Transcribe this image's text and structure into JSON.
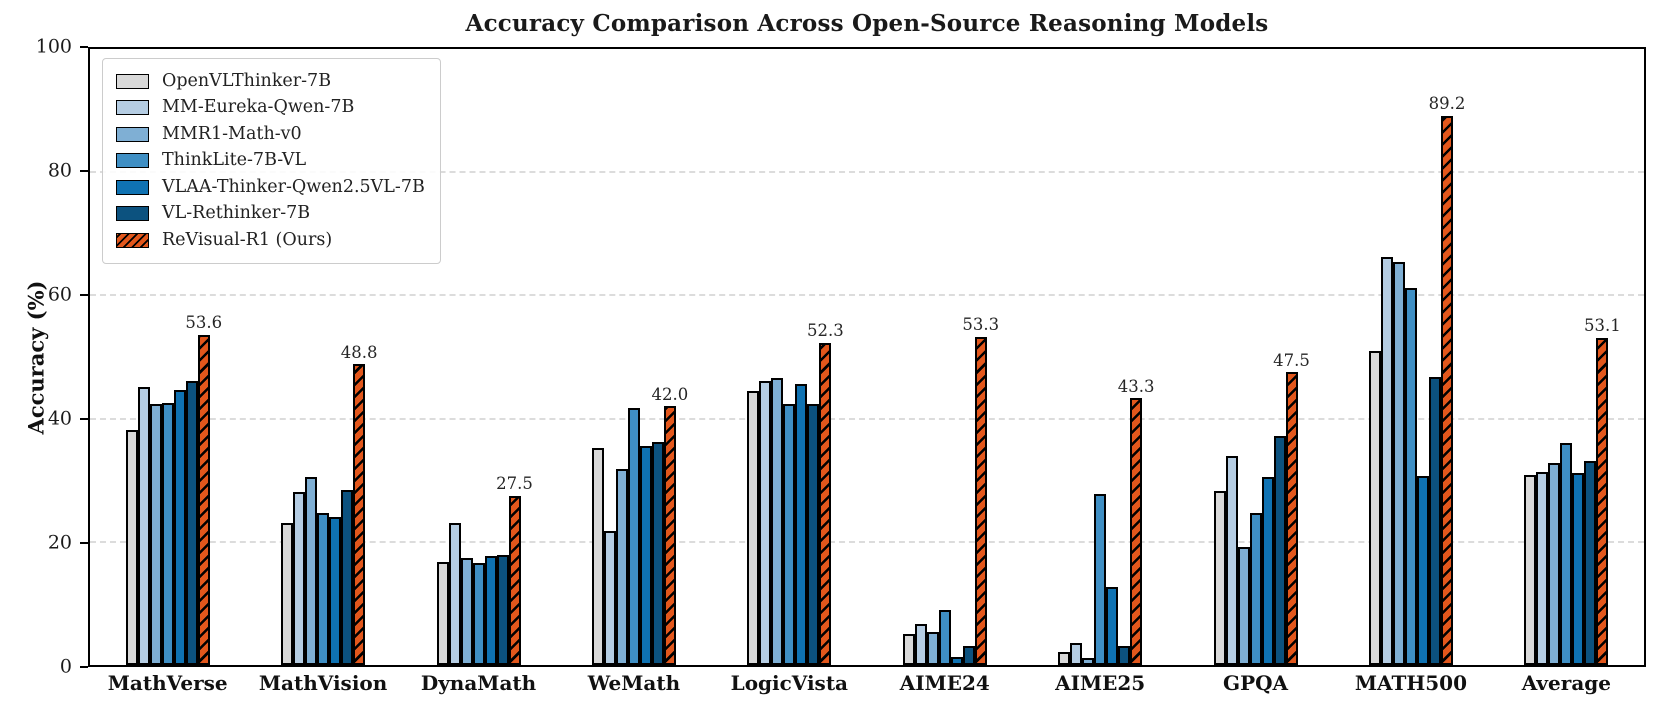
{
  "chart_data": {
    "type": "bar",
    "title": "Accuracy Comparison Across Open-Source Reasoning Models",
    "ylabel": "Accuracy (%)",
    "ylim": [
      0,
      100
    ],
    "yticks": [
      0,
      20,
      40,
      60,
      80,
      100
    ],
    "grid": "horizontal-dashed",
    "legend_position": "upper-left",
    "bar_edge_color": "#000000",
    "categories": [
      "MathVerse",
      "MathVision",
      "DynaMath",
      "WeMath",
      "LogicVista",
      "AIME24",
      "AIME25",
      "GPQA",
      "MATH500",
      "Average"
    ],
    "series": [
      {
        "name": "OpenVLThinker-7B",
        "color": "#d9d9d9",
        "hatch": false,
        "bar_labels": false,
        "values": [
          38.1,
          23.0,
          16.8,
          35.2,
          44.5,
          5.0,
          2.1,
          28.2,
          51.0,
          30.8
        ]
      },
      {
        "name": "MM-Eureka-Qwen-7B",
        "color": "#b5cde3",
        "hatch": false,
        "bar_labels": false,
        "values": [
          45.1,
          28.1,
          23.0,
          21.8,
          46.1,
          6.7,
          3.5,
          34.0,
          66.2,
          31.4
        ]
      },
      {
        "name": "MMR1-Math-v0",
        "color": "#7fafd4",
        "hatch": false,
        "bar_labels": false,
        "values": [
          42.4,
          30.5,
          17.4,
          31.9,
          46.6,
          5.4,
          1.1,
          19.2,
          65.4,
          32.8
        ]
      },
      {
        "name": "ThinkLite-7B-VL",
        "color": "#3f8fc4",
        "hatch": false,
        "bar_labels": false,
        "values": [
          42.6,
          24.6,
          16.5,
          41.8,
          42.4,
          8.9,
          27.8,
          24.7,
          61.2,
          36.0
        ]
      },
      {
        "name": "VLAA-Thinker-Qwen2.5VL-7B",
        "color": "#0f72b2",
        "hatch": false,
        "bar_labels": false,
        "values": [
          44.7,
          24.1,
          17.7,
          35.5,
          45.6,
          1.3,
          12.6,
          30.5,
          30.7,
          31.1
        ]
      },
      {
        "name": "VL-Rethinker-7B",
        "color": "#0c527f",
        "hatch": false,
        "bar_labels": false,
        "values": [
          46.1,
          28.4,
          17.8,
          36.2,
          42.3,
          3.1,
          3.1,
          37.1,
          46.7,
          33.2
        ]
      },
      {
        "name": "ReVisual-R1 (Ours)",
        "color": "#e2571c",
        "hatch": true,
        "bar_labels": true,
        "values": [
          53.6,
          48.8,
          27.5,
          42.0,
          52.3,
          53.3,
          43.3,
          47.5,
          89.2,
          53.1
        ]
      }
    ]
  }
}
